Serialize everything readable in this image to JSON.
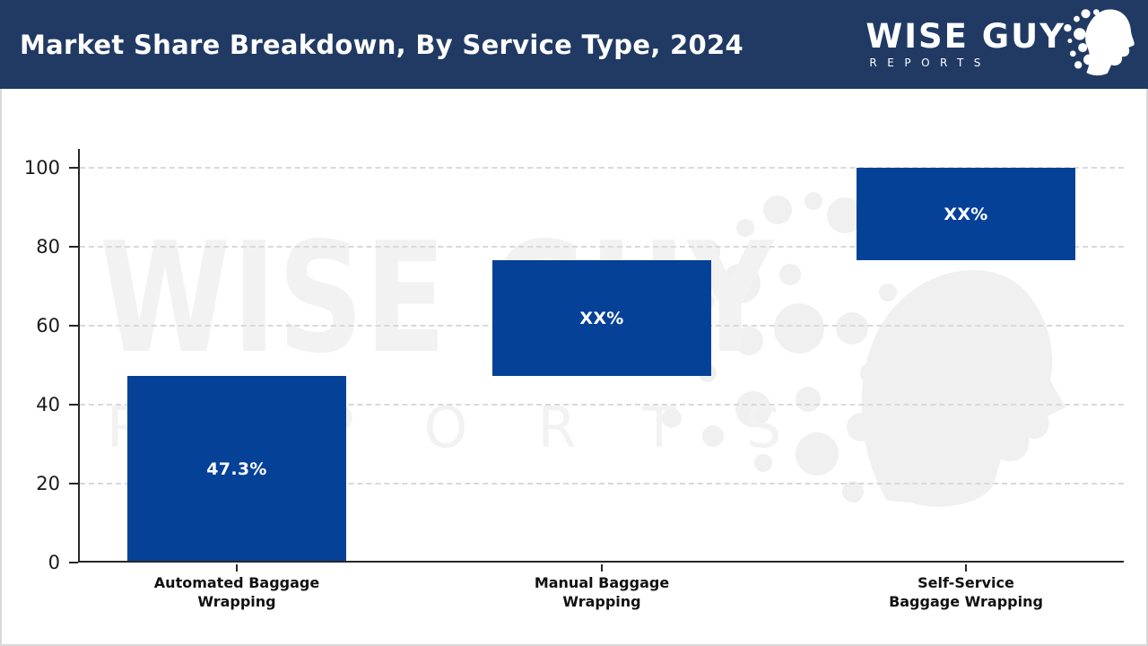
{
  "header": {
    "title": "Market Share Breakdown, By Service Type, 2024",
    "logo": {
      "primary": "WISE GUY",
      "secondary": "REPORTS"
    }
  },
  "watermark": {
    "primary": "WISE GUY",
    "secondary": "REPORTS"
  },
  "chart_data": {
    "type": "bar",
    "subtype": "floating-segment-waterfall",
    "title": "Market Share Breakdown, By Service Type, 2024",
    "categories": [
      "Automated Baggage\nWrapping",
      "Manual Baggage\nWrapping",
      "Self-Service\nBaggage Wrapping"
    ],
    "bars": [
      {
        "category": "Automated Baggage Wrapping",
        "start": 0,
        "end": 47.3,
        "label": "47.3%"
      },
      {
        "category": "Manual Baggage Wrapping",
        "start": 47.3,
        "end": 76.5,
        "label": "XX%"
      },
      {
        "category": "Self-Service Baggage Wrapping",
        "start": 76.5,
        "end": 100,
        "label": "XX%"
      }
    ],
    "yticks": [
      0,
      20,
      40,
      60,
      80,
      100
    ],
    "ylim": [
      0,
      104.5
    ],
    "xlabel": "",
    "ylabel": "",
    "grid": "dashed-horizontal",
    "legend": "none"
  },
  "colors": {
    "header_bg": "#203a64",
    "bar": "#064198",
    "grid": "#d9d9d9",
    "axis": "#262626",
    "text": "#111111",
    "watermark": "#f2f2f2",
    "page_bg": "#ffffff",
    "bar_label": "#ffffff",
    "title_text": "#ffffff"
  }
}
